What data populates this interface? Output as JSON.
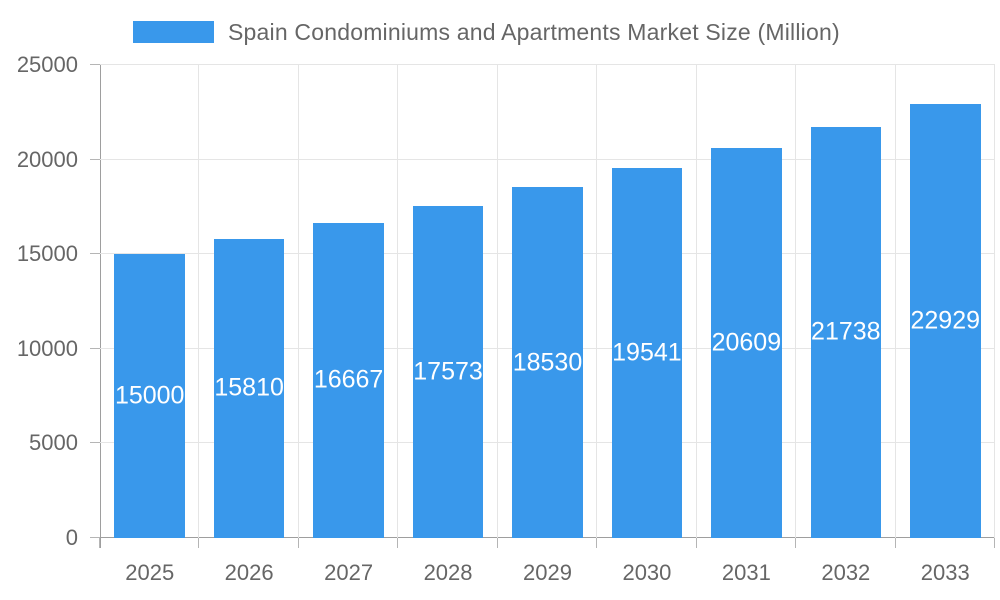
{
  "legend": {
    "label": "Spain Condominiums and Apartments Market Size (Million)"
  },
  "chart_data": {
    "type": "bar",
    "title": "Spain Condominiums and Apartments Market Size (Million)",
    "xlabel": "",
    "ylabel": "",
    "categories": [
      "2025",
      "2026",
      "2027",
      "2028",
      "2029",
      "2030",
      "2031",
      "2032",
      "2033"
    ],
    "values": [
      15000,
      15810,
      16667,
      17573,
      18530,
      19541,
      20609,
      21738,
      22929
    ],
    "ylim": [
      0,
      25000
    ],
    "yticks": [
      0,
      5000,
      10000,
      15000,
      20000,
      25000
    ],
    "grid": true,
    "legend_position": "top",
    "value_label_position": "inside-center",
    "colors": {
      "bar": "#3998EB",
      "bar_label": "#FFFFFF",
      "axis_text": "#666666",
      "grid": "#E5E5E5",
      "axis_line": "#9E9E9E",
      "tick": "#B5B5B5",
      "background": "#FFFFFF"
    }
  }
}
